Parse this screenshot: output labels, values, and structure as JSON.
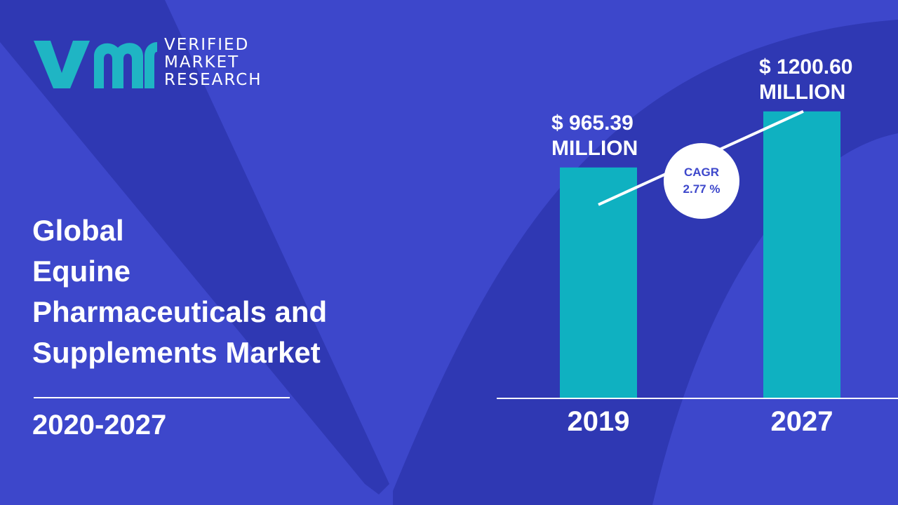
{
  "brand": {
    "line1": "VERIFIED",
    "line2": "MARKET",
    "line3": "RESEARCH",
    "icon": "vmr-logo-mark"
  },
  "title": {
    "line1": "Global",
    "line2": "Equine",
    "line3": "Pharmaceuticals and",
    "line4": "Supplements Market"
  },
  "period": "2020-2027",
  "cagr": {
    "label": "CAGR",
    "value": "2.77 %"
  },
  "colors": {
    "background": "#3d47cb",
    "shape": "#2f38b3",
    "bar": "#0fb1c1",
    "text": "#ffffff",
    "logo": "#1fb5c4"
  },
  "chart_data": {
    "type": "bar",
    "categories": [
      "2019",
      "2027"
    ],
    "values": [
      965.39,
      1200.6
    ],
    "value_labels": [
      {
        "line1": "$ 965.39",
        "line2": "MILLION"
      },
      {
        "line1": "$ 1200.60",
        "line2": "MILLION"
      }
    ],
    "ylim": [
      0,
      1250
    ],
    "grid": false,
    "trend_line": true
  }
}
